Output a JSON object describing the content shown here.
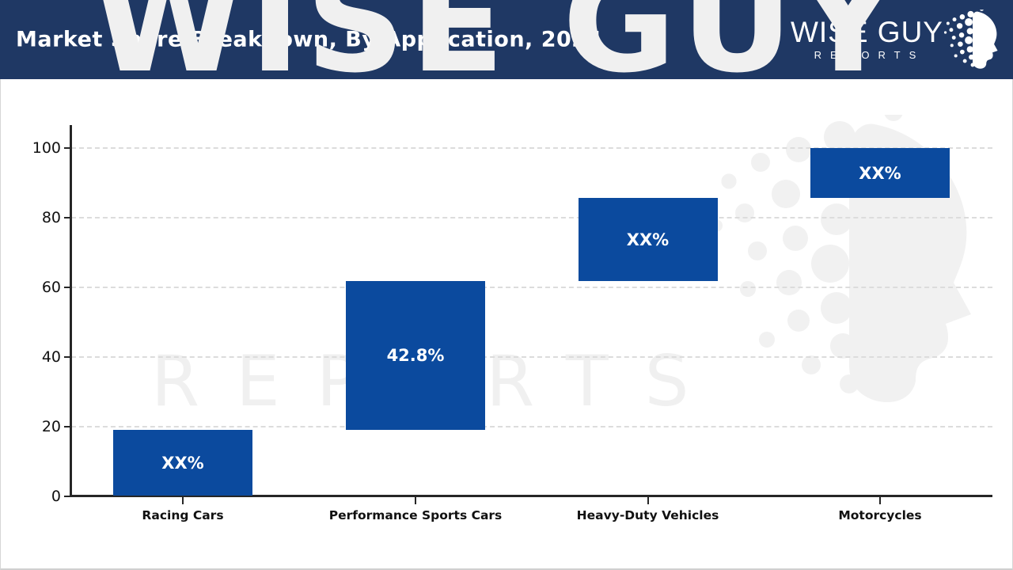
{
  "header": {
    "title": "Market Share Breakdown, By Application, 2024",
    "bg_color": "#1f3864",
    "logo": {
      "line1": "WISE GUY",
      "line2": "REPORTS",
      "icon": "wiseguy-face-icon"
    }
  },
  "watermark": {
    "line1": "WISE GUY",
    "line2": "REPORTS",
    "color": "#f0f0f0"
  },
  "chart_data": {
    "type": "bar",
    "subtype": "floating-waterfall",
    "title": "Market Share Breakdown, By Application, 2024",
    "categories": [
      "Racing Cars",
      "Performance Sports Cars",
      "Heavy-Duty Vehicles",
      "Motorcycles"
    ],
    "segments": [
      {
        "category": "Racing Cars",
        "start": 0,
        "end": 19,
        "label": "XX%"
      },
      {
        "category": "Performance Sports Cars",
        "start": 19,
        "end": 61.8,
        "label": "42.8%"
      },
      {
        "category": "Heavy-Duty Vehicles",
        "start": 61.8,
        "end": 85.6,
        "label": "XX%"
      },
      {
        "category": "Motorcycles",
        "start": 85.6,
        "end": 100,
        "label": "XX%"
      }
    ],
    "yticks": [
      0,
      20,
      40,
      60,
      80,
      100
    ],
    "ylim": [
      0,
      100
    ],
    "xlabel": "",
    "ylabel": "",
    "grid": true,
    "legend": false,
    "bar_color": "#0b4a9e",
    "bar_label_color": "#ffffff",
    "axis_color": "#262626"
  }
}
